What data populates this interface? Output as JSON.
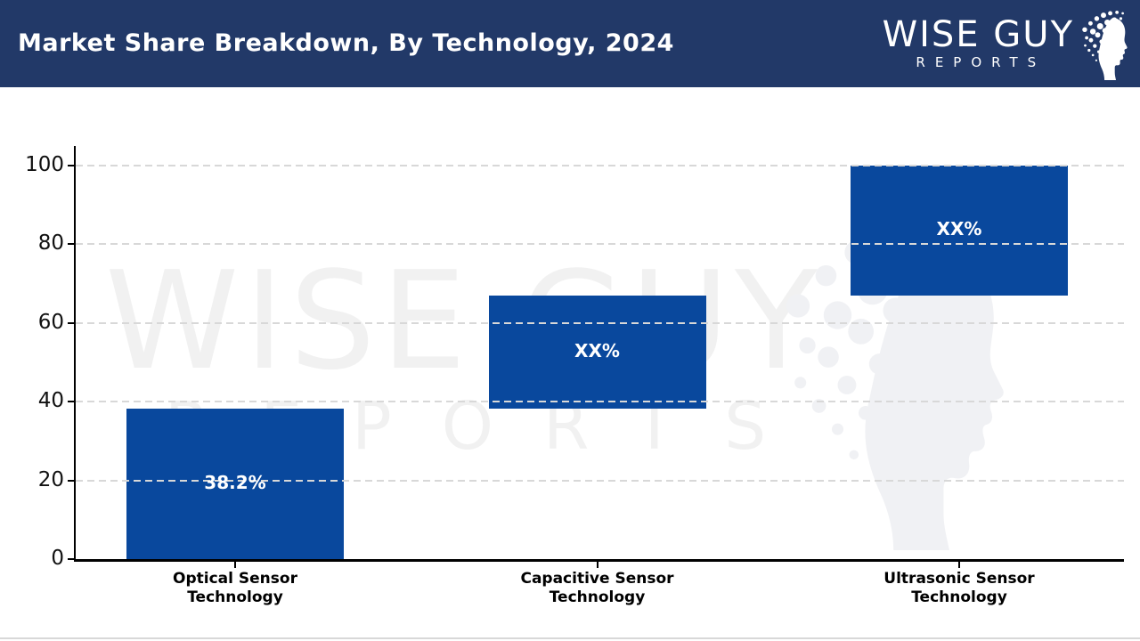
{
  "header": {
    "title": "Market Share Breakdown, By Technology, 2024",
    "logo": {
      "wordmark": "WISE GUY",
      "subtext": "REPORTS"
    }
  },
  "watermark": {
    "line1": "WISE GUY",
    "line2": "REPORTS"
  },
  "chart_data": {
    "type": "bar",
    "subtype": "floating-waterfall",
    "title": "Market Share Breakdown, By Technology, 2024",
    "categories": [
      "Optical Sensor Technology",
      "Capacitive Sensor Technology",
      "Ultrasonic Sensor Technology"
    ],
    "category_lines": [
      [
        "Optical Sensor",
        "Technology"
      ],
      [
        "Capacitive Sensor",
        "Technology"
      ],
      [
        "Ultrasonic Sensor",
        "Technology"
      ]
    ],
    "segments": [
      {
        "category": "Optical Sensor Technology",
        "from": 0,
        "to": 38.2,
        "label": "38.2%"
      },
      {
        "category": "Capacitive Sensor Technology",
        "from": 38.2,
        "to": 66.9,
        "label": "XX%"
      },
      {
        "category": "Ultrasonic Sensor Technology",
        "from": 66.9,
        "to": 100,
        "label": "XX%"
      }
    ],
    "yticks": [
      0,
      20,
      40,
      60,
      80,
      100
    ],
    "ytick_labels": [
      "0",
      "20",
      "40",
      "60",
      "80",
      "100"
    ],
    "ylim": [
      0,
      105
    ],
    "grid": "dashed-horizontal",
    "legend": null,
    "xlabel": "",
    "ylabel": ""
  },
  "colors": {
    "header_bg": "#223968",
    "header_text": "#ffffff",
    "bar": "#09489d",
    "grid": "#d8d8d8",
    "axis": "#000000",
    "value_label": "#ffffff",
    "watermark": "#f1f1f1",
    "bottom_border": "#d8d8d8"
  }
}
